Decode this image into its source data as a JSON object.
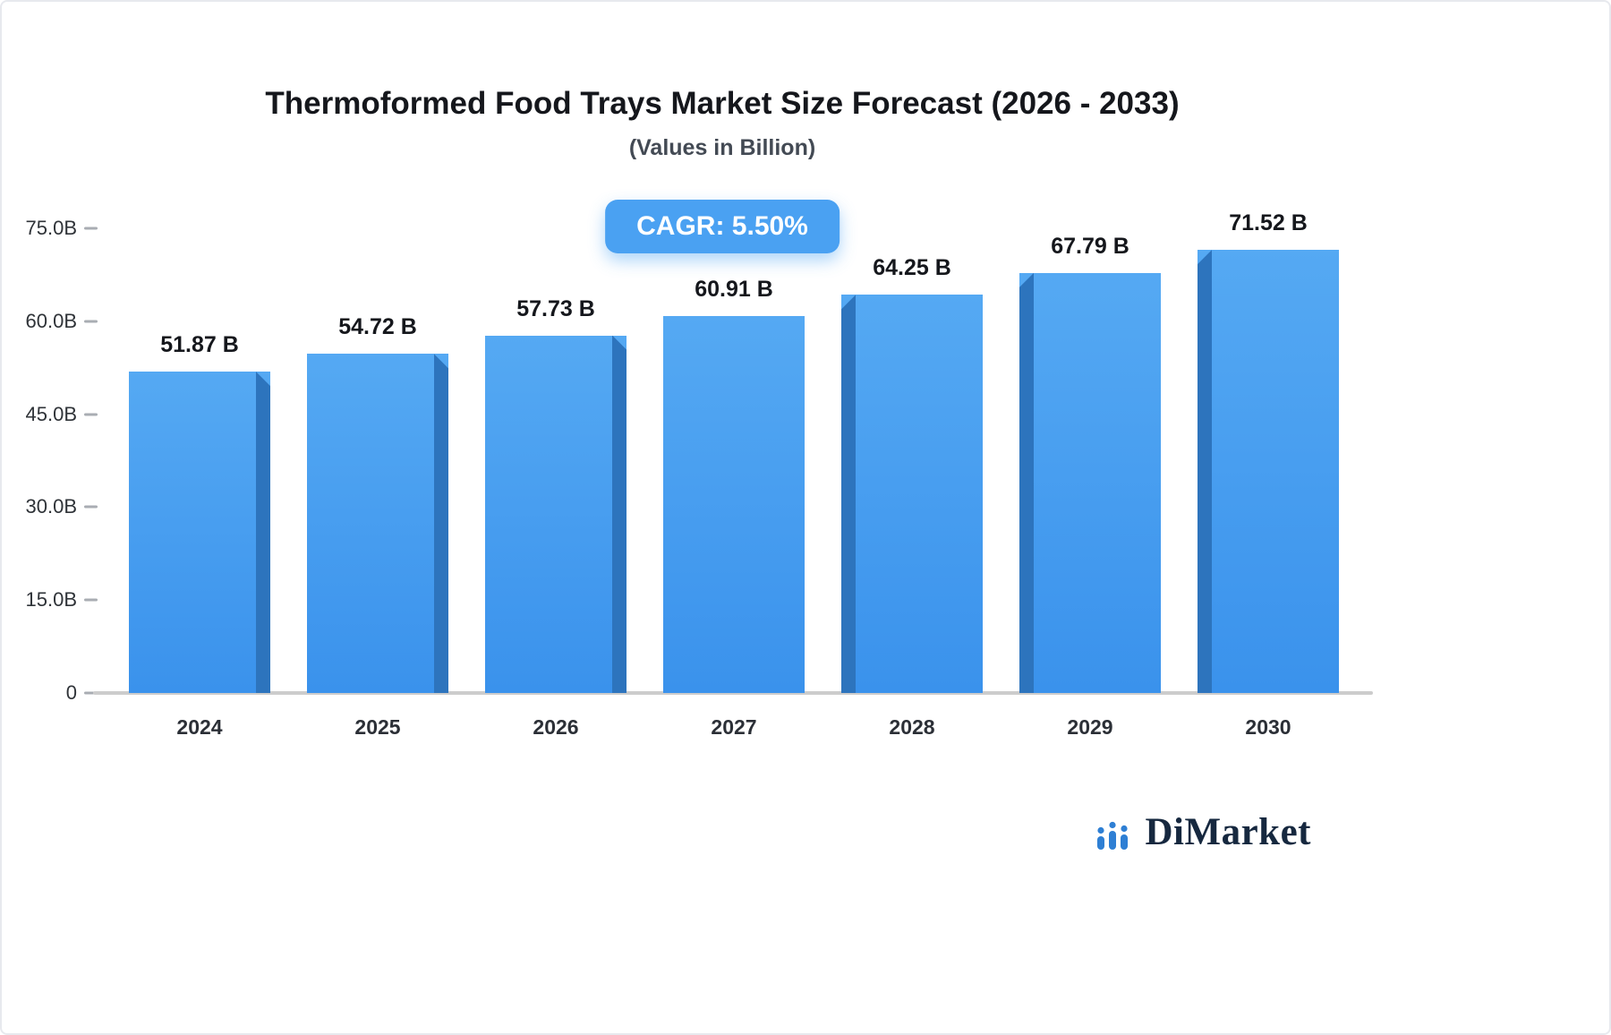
{
  "title": "Thermoformed Food Trays Market Size Forecast (2026 - 2033)",
  "subtitle": "(Values in Billion)",
  "badge_label": "CAGR: 5.50%",
  "logo": {
    "name": "DiMarket"
  },
  "chart_data": {
    "type": "bar",
    "categories": [
      "2024",
      "2025",
      "2026",
      "2027",
      "2028",
      "2029",
      "2030"
    ],
    "values": [
      51.87,
      54.72,
      57.73,
      60.91,
      64.25,
      67.79,
      71.52
    ],
    "value_labels": [
      "51.87 B",
      "54.72 B",
      "57.73 B",
      "60.91 B",
      "64.25 B",
      "67.79 B",
      "71.52 B"
    ],
    "title": "Thermoformed Food Trays Market Size Forecast (2026 - 2033)",
    "subtitle": "(Values in Billion)",
    "annotation": "CAGR: 5.50%",
    "xlabel": "",
    "ylabel": "",
    "ylim": [
      0,
      75
    ],
    "ytick_labels": [
      "0",
      "15.0B",
      "30.0B",
      "45.0B",
      "60.0B",
      "75.0B"
    ],
    "ytick_values": [
      0,
      15,
      30,
      45,
      60,
      75
    ],
    "grid": false,
    "legend": "none",
    "colors": {
      "bar_top": "#55a9f3",
      "bar_bottom": "#3a92ec",
      "bar_side": "#2d74bd",
      "badge": "#4aa1f2",
      "baseline": "#cccccc",
      "logo_blue": "#2e7fd4"
    }
  }
}
